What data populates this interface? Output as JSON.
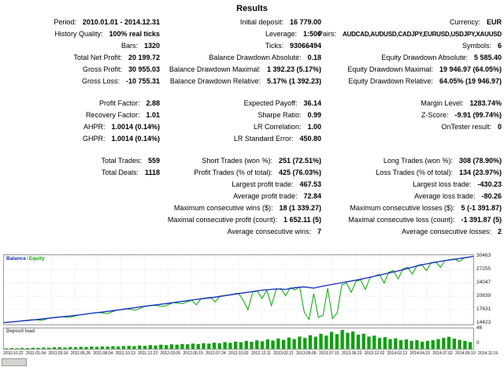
{
  "title": "Results",
  "stats": {
    "rows": [
      [
        "Period:",
        "2010.01.01 - 2014.12.31",
        "Initial deposit:",
        "16 779.00",
        "Currency:",
        "EUR"
      ],
      [
        "History Quality:",
        "100% real ticks",
        "Leverage:",
        "1:500",
        "Pairs:",
        "AUDCAD,AUDUSD,CADJPY,EURUSD,USDJPY,XAUUSD"
      ],
      [
        "Bars:",
        "1320",
        "Ticks:",
        "93066494",
        "Symbols:",
        "6"
      ],
      [
        "Total Net Profit:",
        "20 199.72",
        "Balance Drawdown Absolute:",
        "0.18",
        "Equity Drawdown Absolute:",
        "5 585.40"
      ],
      [
        "Gross Profit:",
        "30 955.03",
        "Balance Drawdown Maximal:",
        "1 392.23 (5.17%)",
        "Equity Drawdown Maximal:",
        "19 946.97 (64.05%)"
      ],
      [
        "Gross Loss:",
        "-10 755.31",
        "Balance Drawdown Relative:",
        "5.17% (1 392.23)",
        "Equity Drawdown Relative:",
        "64.05% (19 946.97)"
      ],
      null,
      [
        "Profit Factor:",
        "2.88",
        "Expected Payoff:",
        "36.14",
        "Margin Level:",
        "1283.74%"
      ],
      [
        "Recovery Factor:",
        "1.01",
        "Sharpe Ratio:",
        "0.99",
        "Z-Score:",
        "-9.91 (99.74%)"
      ],
      [
        "AHPR:",
        "1.0014 (0.14%)",
        "LR Correlation:",
        "1.00",
        "OnTester result:",
        "0"
      ],
      [
        "GHPR:",
        "1.0014 (0.14%)",
        "LR Standard Error:",
        "450.80",
        "",
        ""
      ],
      null,
      [
        "Total Trades:",
        "559",
        "Short Trades (won %):",
        "251 (72.51%)",
        "Long Trades (won %):",
        "308 (78.90%)"
      ],
      [
        "Total Deals:",
        "1118",
        "Profit Trades (% of total):",
        "425 (76.03%)",
        "Loss Trades (% of total):",
        "134 (23.97%)"
      ],
      [
        "",
        "",
        "Largest profit trade:",
        "467.53",
        "Largest loss trade:",
        "-430.23"
      ],
      [
        "",
        "",
        "Average profit trade:",
        "72.84",
        "Average loss trade:",
        "-80.26"
      ],
      [
        "",
        "",
        "Maximum consecutive wins ($):",
        "18 (1 339.27)",
        "Maximum consecutive losses ($):",
        "5 (-1 391.87)"
      ],
      [
        "",
        "",
        "Maximal consecutive profit (count):",
        "1 652.11 (5)",
        "Maximal consecutive loss (count):",
        "-1 391.87 (5)"
      ],
      [
        "",
        "",
        "Average consecutive wins:",
        "7",
        "Average consecutive losses:",
        "2"
      ]
    ]
  },
  "chart_data": {
    "type": "line",
    "title": "",
    "legend": [
      {
        "label": "Balance",
        "color": "#1428c8"
      },
      {
        "label": "Equity",
        "color": "#00a800"
      }
    ],
    "legend_separator": "/",
    "ylim": [
      14100,
      30700
    ],
    "y_gridlines": [
      30463,
      27255,
      24047,
      20839,
      17631,
      14423
    ],
    "x_axis_labels": [
      "2010.10.22",
      "2011.01.04",
      "2011.03.16",
      "2011.05.26",
      "2011.08.04",
      "2011.10.13",
      "2011.12.22",
      "2012.03.05",
      "2012.05.15",
      "2012.07.24",
      "2012.10.02",
      "2012.12.11",
      "2013.02.21",
      "2013.05.06",
      "2013.07.15",
      "2013.09.23",
      "2013.12.02",
      "2014.02.12",
      "2014.04.23",
      "2014.07.02",
      "2014.09.10",
      "2014.11.19"
    ],
    "series": [
      {
        "name": "Equity",
        "color": "#00a800",
        "width": 1,
        "points": [
          [
            0,
            14500
          ],
          [
            2,
            14750
          ],
          [
            4,
            15000
          ],
          [
            6,
            15250
          ],
          [
            8,
            15100
          ],
          [
            10,
            15700
          ],
          [
            12,
            15950
          ],
          [
            14,
            15800
          ],
          [
            16,
            16350
          ],
          [
            18,
            16700
          ],
          [
            20,
            17000
          ],
          [
            22,
            16700
          ],
          [
            24,
            17500
          ],
          [
            26,
            17900
          ],
          [
            28,
            17500
          ],
          [
            30,
            18400
          ],
          [
            32,
            18700
          ],
          [
            34,
            18400
          ],
          [
            36,
            19300
          ],
          [
            38,
            19100
          ],
          [
            40,
            19900
          ],
          [
            41,
            18800
          ],
          [
            42,
            20300
          ],
          [
            44,
            20600
          ],
          [
            45,
            19500
          ],
          [
            46,
            20900
          ],
          [
            48,
            21200
          ],
          [
            50,
            21600
          ],
          [
            51,
            19800
          ],
          [
            52,
            17600
          ],
          [
            53,
            21900
          ],
          [
            54,
            22100
          ],
          [
            55,
            20300
          ],
          [
            56,
            22300
          ],
          [
            57,
            18600
          ],
          [
            58,
            22500
          ],
          [
            59,
            22700
          ],
          [
            60,
            21000
          ],
          [
            61,
            22900
          ],
          [
            62,
            22400
          ],
          [
            63,
            23100
          ],
          [
            64,
            17000
          ],
          [
            65,
            15300
          ],
          [
            66,
            21500
          ],
          [
            67,
            15800
          ],
          [
            68,
            16300
          ],
          [
            69,
            22800
          ],
          [
            70,
            15500
          ],
          [
            71,
            16900
          ],
          [
            72,
            23600
          ],
          [
            73,
            24000
          ],
          [
            74,
            21800
          ],
          [
            75,
            24400
          ],
          [
            76,
            24800
          ],
          [
            77,
            22500
          ],
          [
            78,
            25300
          ],
          [
            79,
            25700
          ],
          [
            80,
            26100
          ],
          [
            81,
            24000
          ],
          [
            82,
            26600
          ],
          [
            83,
            27000
          ],
          [
            84,
            25000
          ],
          [
            85,
            27400
          ],
          [
            86,
            27800
          ],
          [
            87,
            26200
          ],
          [
            88,
            28200
          ],
          [
            89,
            28500
          ],
          [
            90,
            27000
          ],
          [
            91,
            28900
          ],
          [
            92,
            29100
          ],
          [
            93,
            27800
          ],
          [
            94,
            29400
          ],
          [
            95,
            29600
          ],
          [
            96,
            29800
          ],
          [
            97,
            29200
          ],
          [
            98,
            30000
          ],
          [
            99,
            30200
          ],
          [
            100,
            30450
          ]
        ]
      },
      {
        "name": "Balance",
        "color": "#1428c8",
        "width": 1.3,
        "points": [
          [
            0,
            14550
          ],
          [
            5,
            15050
          ],
          [
            10,
            15650
          ],
          [
            15,
            16250
          ],
          [
            20,
            16950
          ],
          [
            25,
            17650
          ],
          [
            30,
            18450
          ],
          [
            35,
            19150
          ],
          [
            40,
            19950
          ],
          [
            45,
            20650
          ],
          [
            50,
            21500
          ],
          [
            55,
            22300
          ],
          [
            58,
            22600
          ],
          [
            60,
            22500
          ],
          [
            62,
            22900
          ],
          [
            64,
            23100
          ],
          [
            66,
            22800
          ],
          [
            68,
            23300
          ],
          [
            70,
            23700
          ],
          [
            72,
            24100
          ],
          [
            75,
            24700
          ],
          [
            78,
            25400
          ],
          [
            80,
            25900
          ],
          [
            82,
            26400
          ],
          [
            85,
            27200
          ],
          [
            88,
            28100
          ],
          [
            90,
            28600
          ],
          [
            92,
            29000
          ],
          [
            94,
            29400
          ],
          [
            96,
            29700
          ],
          [
            98,
            30050
          ],
          [
            100,
            30400
          ]
        ]
      }
    ],
    "deposit_load": {
      "label": "Deposit load",
      "color": "#0da10d",
      "axis_labels": [
        "46",
        "0"
      ],
      "values": [
        3,
        4,
        3,
        5,
        4,
        6,
        5,
        7,
        6,
        8,
        9,
        7,
        10,
        9,
        11,
        10,
        12,
        11,
        13,
        12,
        14,
        13,
        15,
        16,
        14,
        18,
        16,
        20,
        18,
        22,
        20,
        24,
        22,
        26,
        24,
        28,
        26,
        30,
        28,
        33,
        30,
        36,
        32,
        38,
        35,
        42,
        38,
        45,
        40,
        50,
        44,
        55,
        48,
        60,
        52,
        65,
        58,
        72,
        64,
        80,
        70,
        90,
        78,
        100,
        85,
        92,
        75,
        80,
        65,
        70,
        58,
        62,
        52,
        56,
        46,
        50,
        42,
        46,
        38,
        42,
        46,
        52,
        58,
        64,
        54,
        48,
        42,
        36
      ]
    }
  }
}
